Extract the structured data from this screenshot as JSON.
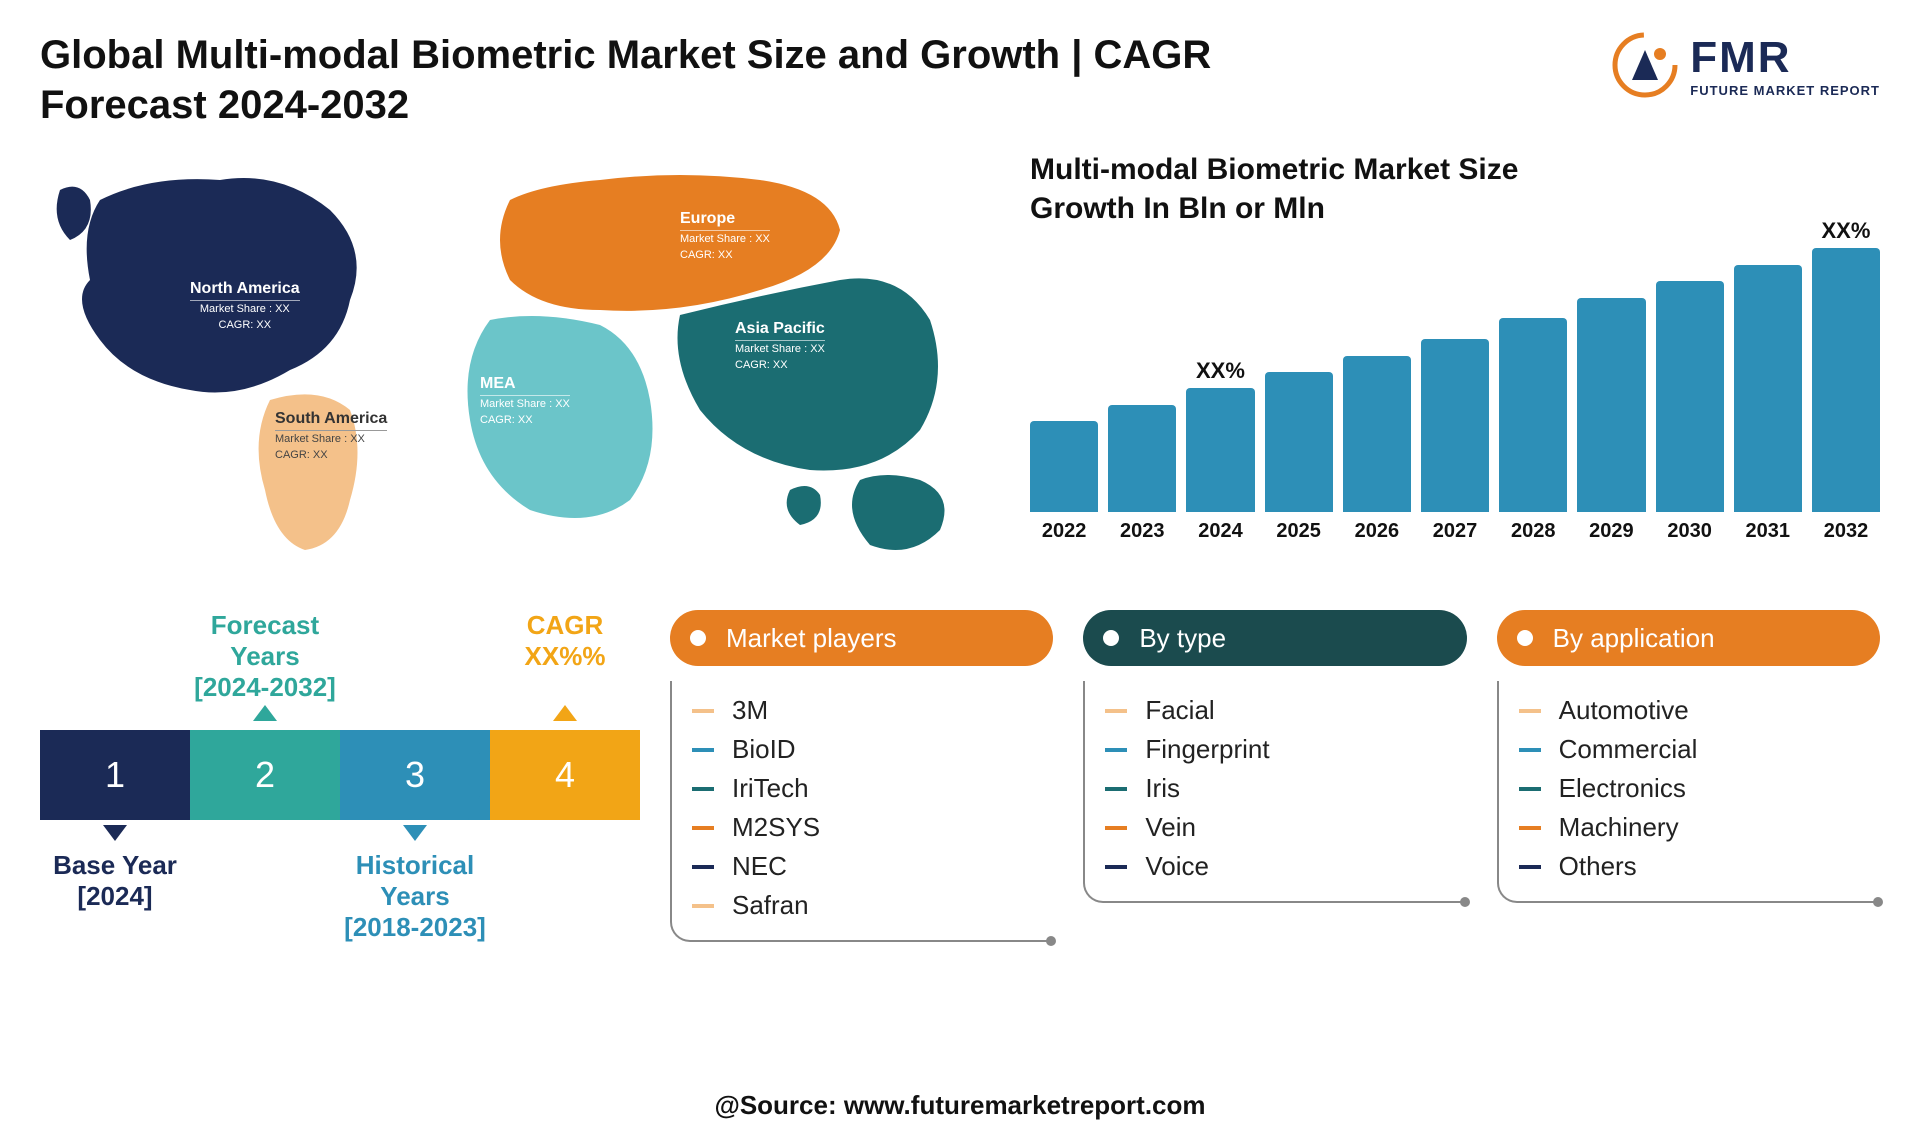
{
  "title": "Global Multi-modal Biometric Market Size and Growth | CAGR Forecast 2024-2032",
  "logo": {
    "main": "FMR",
    "sub": "FUTURE MARKET REPORT"
  },
  "map": {
    "regions": [
      {
        "name": "North America",
        "share": "Market Share : XX",
        "cagr": "CAGR: XX",
        "color": "#1b2a56"
      },
      {
        "name": "South America",
        "share": "Market Share : XX",
        "cagr": "CAGR: XX",
        "color": "#f4c18a",
        "dark_text": true
      },
      {
        "name": "Europe",
        "share": "Market Share : XX",
        "cagr": "CAGR: XX",
        "color": "#e67e22"
      },
      {
        "name": "MEA",
        "share": "Market Share : XX",
        "cagr": "CAGR: XX",
        "color": "#6bc5c9"
      },
      {
        "name": "Asia Pacific",
        "share": "Market Share : XX",
        "cagr": "CAGR: XX",
        "color": "#1b6d72"
      }
    ]
  },
  "chart": {
    "type": "bar",
    "title": "Multi-modal Biometric Market Size Growth In Bln or Mln",
    "years": [
      "2022",
      "2023",
      "2024",
      "2025",
      "2026",
      "2027",
      "2028",
      "2029",
      "2030",
      "2031",
      "2032"
    ],
    "values": [
      110,
      130,
      150,
      170,
      190,
      210,
      235,
      260,
      280,
      300,
      320
    ],
    "ylim": [
      0,
      340
    ],
    "bar_color": "#2d8fb7",
    "label_fontsize": 20,
    "title_fontsize": 30,
    "annotations": [
      {
        "index": 2,
        "text": "XX%"
      },
      {
        "index": 10,
        "text": "XX%"
      }
    ]
  },
  "timeline": {
    "segments": [
      {
        "num": "1",
        "color": "#1b2a56",
        "label": "Base Year [2024]",
        "label_color": "#1b2a56",
        "pos": "bottom"
      },
      {
        "num": "2",
        "color": "#2fa79b",
        "label": "Forecast Years [2024-2032]",
        "label_color": "#2fa79b",
        "pos": "top"
      },
      {
        "num": "3",
        "color": "#2d8fb7",
        "label": "Historical Years [2018-2023]",
        "label_color": "#2d8fb7",
        "pos": "bottom"
      },
      {
        "num": "4",
        "color": "#f2a516",
        "label": "CAGR XX%%",
        "label_color": "#f2a516",
        "pos": "top"
      }
    ]
  },
  "categories": [
    {
      "title": "Market players",
      "header_color": "#e67e22",
      "items": [
        {
          "label": "3M",
          "tick": "#f4c18a"
        },
        {
          "label": "BioID",
          "tick": "#2d8fb7"
        },
        {
          "label": "IriTech",
          "tick": "#1b6d72"
        },
        {
          "label": "M2SYS",
          "tick": "#e67e22"
        },
        {
          "label": "NEC",
          "tick": "#1b2a56"
        },
        {
          "label": "Safran",
          "tick": "#f4c18a"
        }
      ]
    },
    {
      "title": "By type",
      "header_color": "#1b4b4e",
      "items": [
        {
          "label": "Facial",
          "tick": "#f4c18a"
        },
        {
          "label": "Fingerprint",
          "tick": "#2d8fb7"
        },
        {
          "label": "Iris",
          "tick": "#1b6d72"
        },
        {
          "label": "Vein",
          "tick": "#e67e22"
        },
        {
          "label": "Voice",
          "tick": "#1b2a56"
        }
      ]
    },
    {
      "title": "By application",
      "header_color": "#e67e22",
      "items": [
        {
          "label": "Automotive",
          "tick": "#f4c18a"
        },
        {
          "label": "Commercial",
          "tick": "#2d8fb7"
        },
        {
          "label": "Electronics",
          "tick": "#1b6d72"
        },
        {
          "label": "Machinery",
          "tick": "#e67e22"
        },
        {
          "label": "Others",
          "tick": "#1b2a56"
        }
      ]
    }
  ],
  "source": "@Source: www.futuremarketreport.com"
}
